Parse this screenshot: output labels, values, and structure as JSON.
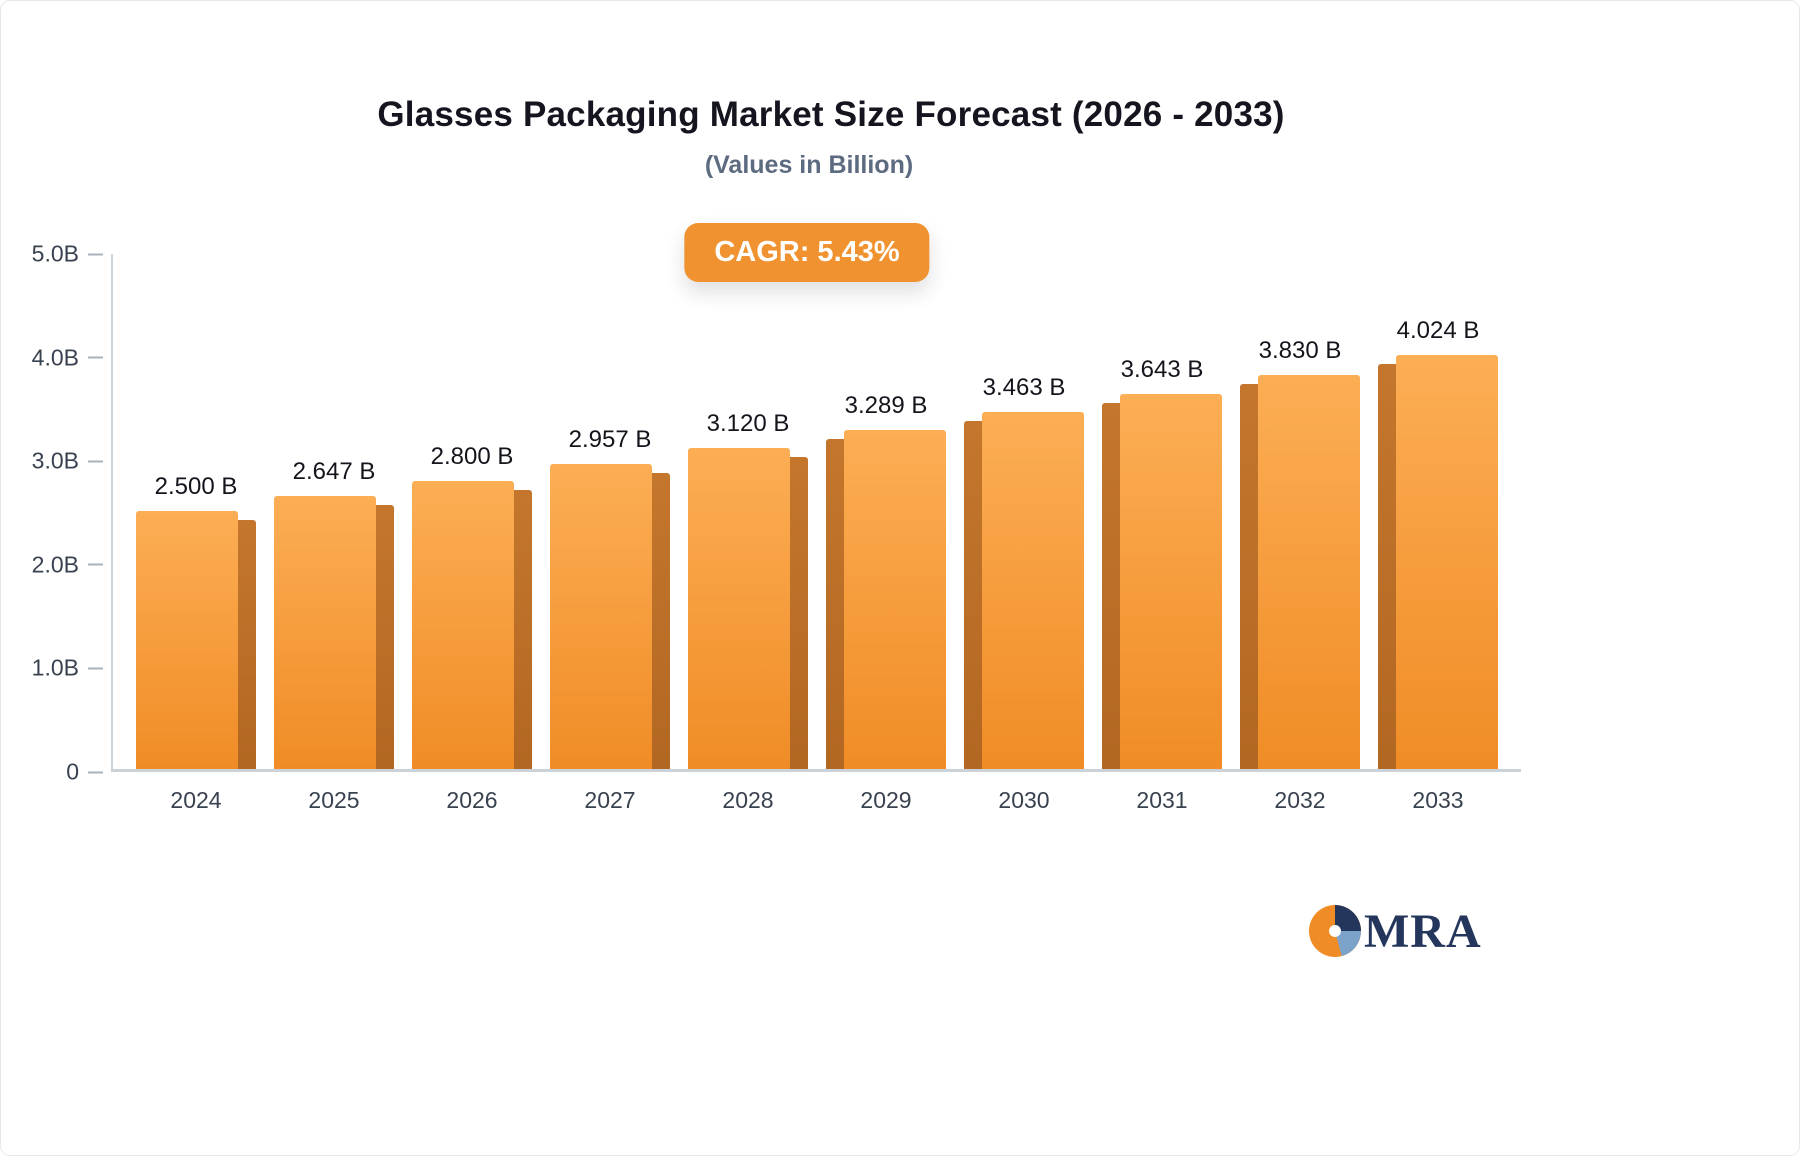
{
  "badge": {
    "label": "CAGR: 5.43%"
  },
  "logo": {
    "text": "MRA"
  },
  "colors": {
    "bar_top": "#fcae55",
    "bar_bottom": "#f08c26",
    "bar_side_top": "#c4762c",
    "bar_side_bottom": "#b26722",
    "badge_bg": "#f0922f",
    "badge_text": "#ffffff",
    "title": "#15151f",
    "subtitle": "#5d6b80",
    "axis_label": "#39424f",
    "tick": "#aab2bd",
    "axis_line": "#ccd2da",
    "logo_navy": "#24365c",
    "logo_blue": "#7ba3c9",
    "logo_orange": "#f08c26"
  },
  "chart_data": {
    "type": "bar",
    "title": "Glasses Packaging Market Size Forecast (2026 - 2033)",
    "subtitle": "(Values in Billion)",
    "categories": [
      "2024",
      "2025",
      "2026",
      "2027",
      "2028",
      "2029",
      "2030",
      "2031",
      "2032",
      "2033"
    ],
    "values": [
      2.5,
      2.647,
      2.8,
      2.957,
      3.12,
      3.289,
      3.463,
      3.643,
      3.83,
      4.024
    ],
    "value_labels": [
      "2.500 B",
      "2.647 B",
      "2.800 B",
      "2.957 B",
      "3.120 B",
      "3.289 B",
      "3.463 B",
      "3.643 B",
      "3.830 B",
      "4.024 B"
    ],
    "xlabel": "",
    "ylabel": "",
    "ylim": [
      0,
      5
    ],
    "yticks": [
      {
        "label": "5.0B",
        "value": 5.0
      },
      {
        "label": "4.0B",
        "value": 4.0
      },
      {
        "label": "3.0B",
        "value": 3.0
      },
      {
        "label": "2.0B",
        "value": 2.0
      },
      {
        "label": "1.0B",
        "value": 1.0
      },
      {
        "label": "0",
        "value": 0.0
      }
    ],
    "grid": false,
    "legend": "none",
    "annotation": "CAGR: 5.43%"
  }
}
